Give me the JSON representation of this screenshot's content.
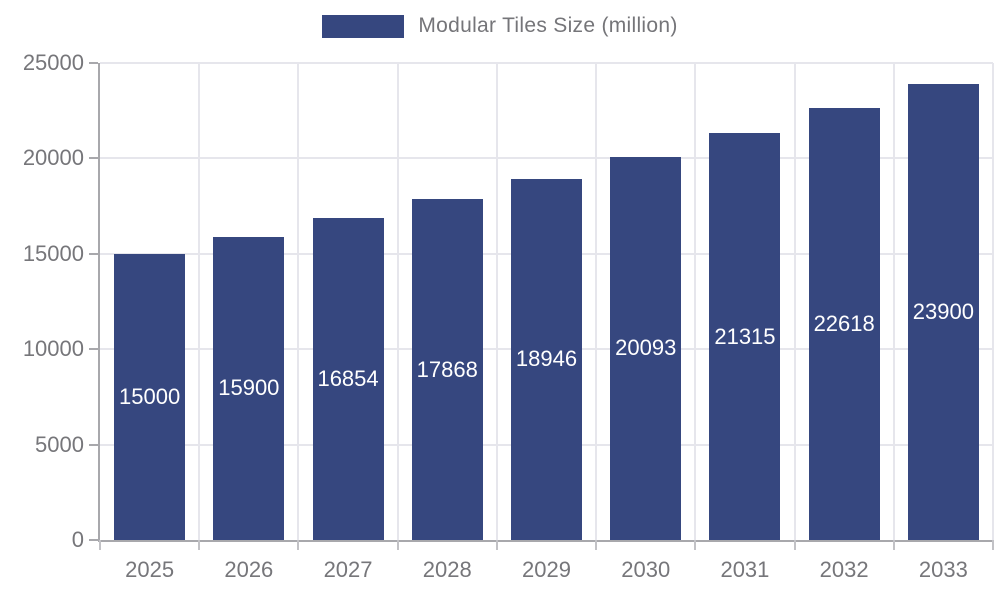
{
  "legend": {
    "label": "Modular Tiles Size (million)"
  },
  "colors": {
    "bar": "#36477f",
    "legend_text": "#757579",
    "axis_line": "#a8a8ac",
    "grid_line": "#e6e6ec",
    "tick_label": "#76767a",
    "bar_label": "#ffffff",
    "background": "#ffffff"
  },
  "chart_data": {
    "type": "bar",
    "title": "Modular Tiles Size (million)",
    "categories": [
      "2025",
      "2026",
      "2027",
      "2028",
      "2029",
      "2030",
      "2031",
      "2032",
      "2033"
    ],
    "series": [
      {
        "name": "Modular Tiles Size (million)",
        "values": [
          15000,
          15900,
          16854,
          17868,
          18946,
          20093,
          21315,
          22618,
          23900
        ]
      }
    ],
    "bar_value_labels": [
      "15000",
      "15900",
      "16854",
      "17868",
      "18946",
      "20093",
      "21315",
      "22618",
      "23900"
    ],
    "xlabel": "",
    "ylabel": "",
    "ylim": [
      0,
      25000
    ],
    "ytick_interval": 5000,
    "ytick_labels": [
      "0",
      "5000",
      "10000",
      "15000",
      "20000",
      "25000"
    ],
    "grid": true,
    "legend_position": "top",
    "bar_label_position": "inside-center"
  }
}
